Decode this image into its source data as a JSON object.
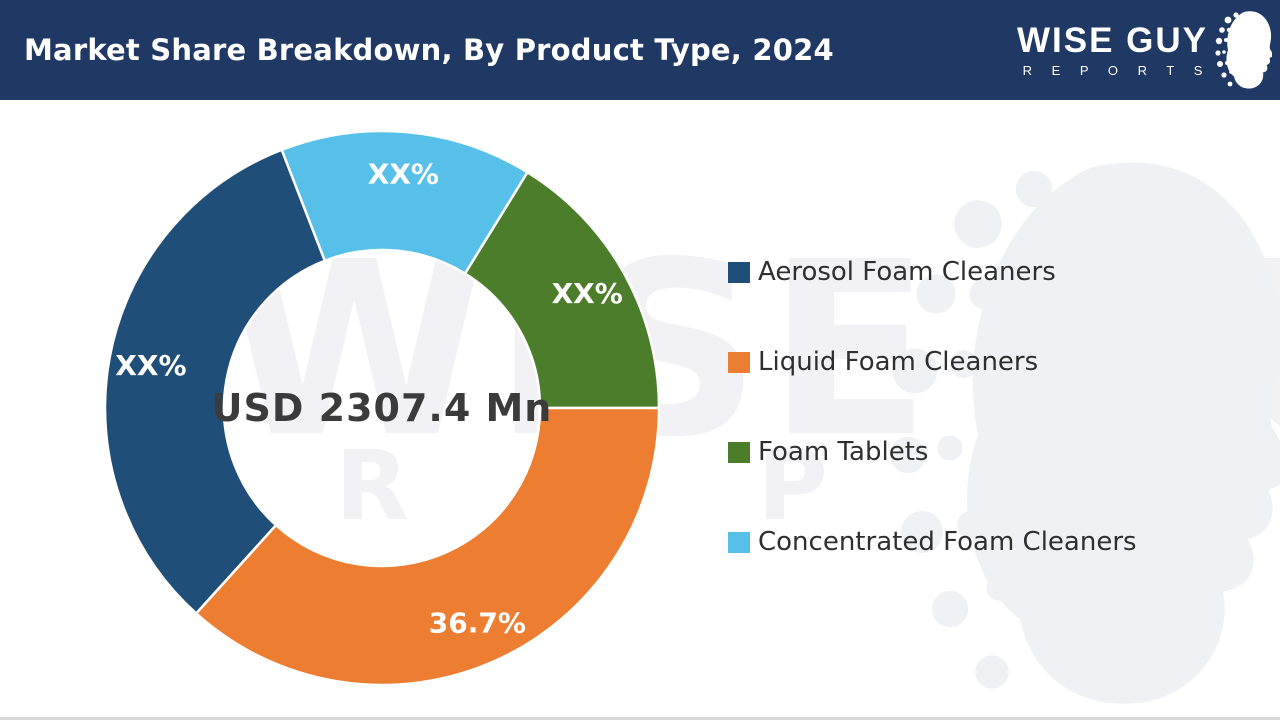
{
  "header": {
    "title": "Market Share Breakdown, By Product Type, 2024",
    "bg_color": "#203864",
    "logo": {
      "line1": "WISE GUY",
      "line2": "R E P O R T S"
    }
  },
  "watermark": {
    "line1": "WISE GUY",
    "line2": "R E P O R T S"
  },
  "chart_data": {
    "type": "pie",
    "subtype": "donut",
    "title": "Market Share Breakdown, By Product Type, 2024",
    "center_label": "USD 2307.4 Mn",
    "legend_position": "right",
    "start_angle_deg": 0,
    "direction": "ccw",
    "hole_ratio": 0.57,
    "slices": [
      {
        "name": "Foam Tablets",
        "value_pct": 16.2,
        "label": "XX%",
        "color": "#4b7d2a"
      },
      {
        "name": "Concentrated Foam Cleaners",
        "value_pct": 14.7,
        "label": "XX%",
        "color": "#57c0e8"
      },
      {
        "name": "Aerosol Foam Cleaners",
        "value_pct": 32.4,
        "label": "XX%",
        "color": "#1f4e78"
      },
      {
        "name": "Liquid Foam Cleaners",
        "value_pct": 36.7,
        "label": "36.7%",
        "color": "#ed7d31"
      }
    ]
  },
  "legend": {
    "items": [
      {
        "label": "Aerosol Foam Cleaners",
        "color": "#1f4e78"
      },
      {
        "label": "Liquid Foam Cleaners",
        "color": "#ed7d31"
      },
      {
        "label": "Foam Tablets",
        "color": "#4b7d2a"
      },
      {
        "label": "Concentrated Foam Cleaners",
        "color": "#57c0e8"
      }
    ]
  }
}
